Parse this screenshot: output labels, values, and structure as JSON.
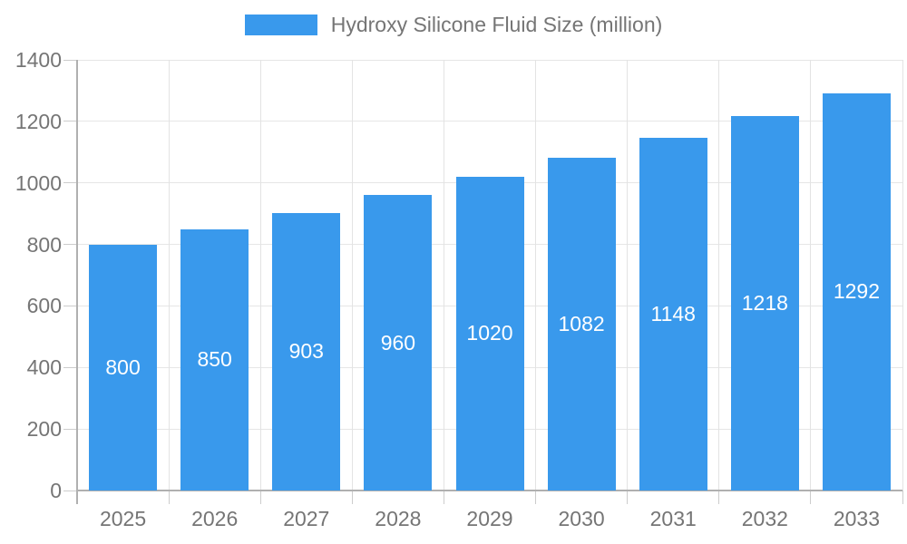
{
  "legend": {
    "label": "Hydroxy Silicone Fluid Size (million)",
    "swatch_color": "#3999ec"
  },
  "chart_data": {
    "type": "bar",
    "title": "Hydroxy Silicone Fluid Size (million)",
    "categories": [
      "2025",
      "2026",
      "2027",
      "2028",
      "2029",
      "2030",
      "2031",
      "2032",
      "2033"
    ],
    "values": [
      800,
      850,
      903,
      960,
      1020,
      1082,
      1148,
      1218,
      1292
    ],
    "xlabel": "",
    "ylabel": "",
    "ylim": [
      0,
      1400
    ],
    "ytick_interval": 200,
    "ytick_labels": [
      "0",
      "200",
      "400",
      "600",
      "800",
      "1000",
      "1200",
      "1400"
    ],
    "grid": true,
    "legend_position": "top-center",
    "bar_color": "#3999ec",
    "bar_label_color": "#ffffff",
    "axis_text_color": "#757575",
    "gridline_color": "#e6e6e6",
    "axis_line_color": "#b0b0b0"
  }
}
